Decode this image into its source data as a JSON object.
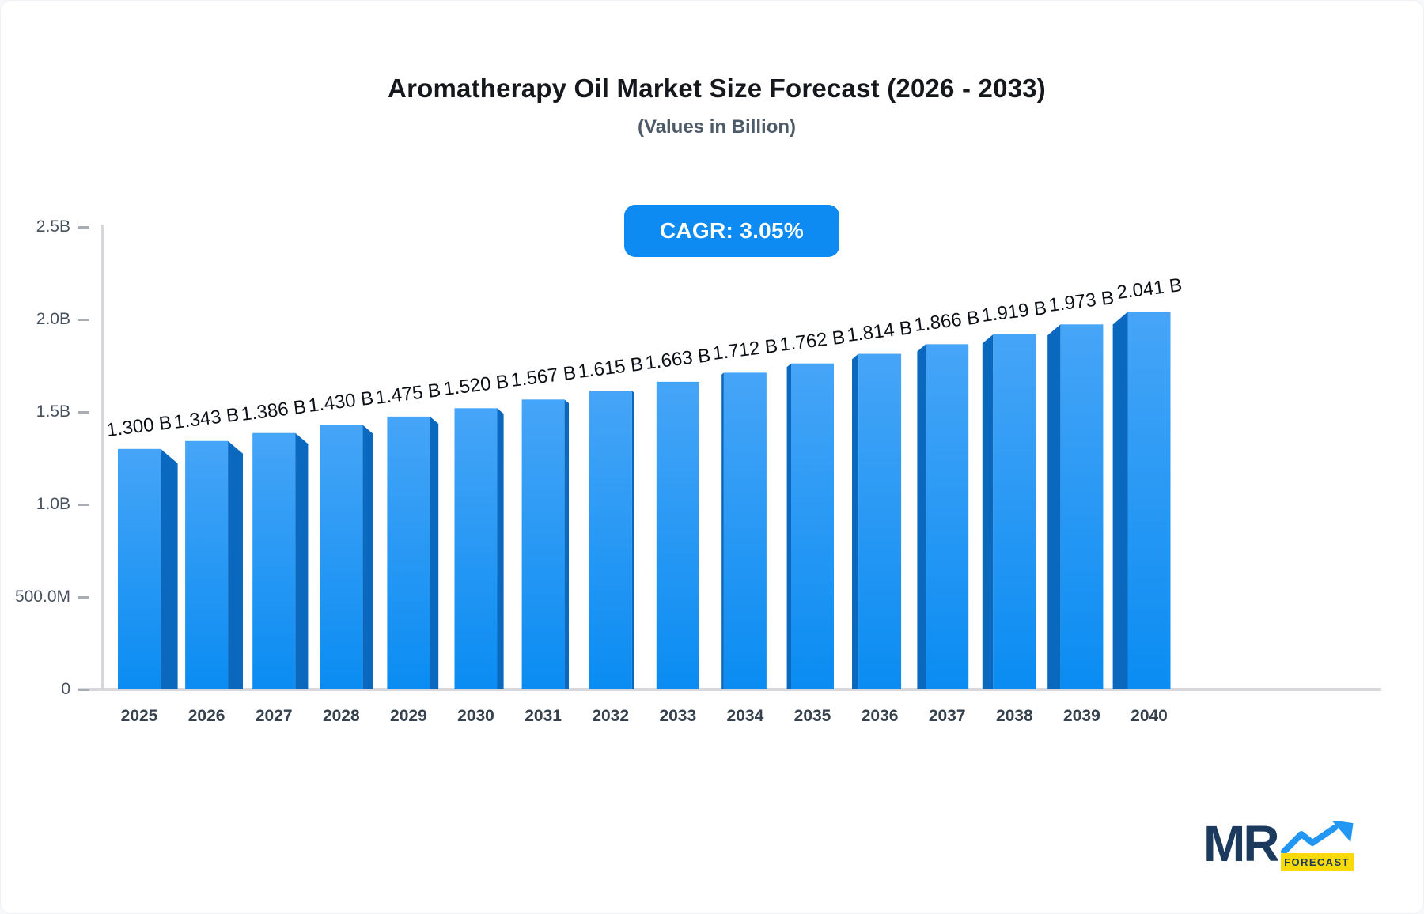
{
  "chart_data": {
    "type": "bar",
    "title": "Aromatherapy Oil Market Size Forecast (2026 - 2033)",
    "subtitle": "(Values in Billion)",
    "badge": "CAGR: 3.05%",
    "categories": [
      "2025",
      "2026",
      "2027",
      "2028",
      "2029",
      "2030",
      "2031",
      "2032",
      "2033",
      "2034",
      "2035",
      "2036",
      "2037",
      "2038",
      "2039",
      "2040"
    ],
    "values": [
      1.3,
      1.343,
      1.386,
      1.43,
      1.475,
      1.52,
      1.567,
      1.615,
      1.663,
      1.712,
      1.762,
      1.814,
      1.866,
      1.919,
      1.973,
      2.041
    ],
    "value_labels": [
      "1.300 B",
      "1.343 B",
      "1.386 B",
      "1.430 B",
      "1.475 B",
      "1.520 B",
      "1.567 B",
      "1.615 B",
      "1.663 B",
      "1.712 B",
      "1.762 B",
      "1.814 B",
      "1.866 B",
      "1.919 B",
      "1.973 B",
      "2.041 B"
    ],
    "unit": "Billion",
    "xlabel": "",
    "ylabel": "",
    "ylim": [
      0,
      2.5
    ],
    "grid": false,
    "legend": "none",
    "y_ticks": [
      {
        "label": "2.5B",
        "value": 2.5
      },
      {
        "label": "2.0B",
        "value": 2.0
      },
      {
        "label": "1.5B",
        "value": 1.5
      },
      {
        "label": "1.0B",
        "value": 1.0
      },
      {
        "label": "500.0M",
        "value": 0.5
      },
      {
        "label": "0",
        "value": 0
      }
    ],
    "colors": {
      "bar_front_top": "#46a5f7",
      "bar_front_bottom": "#0a8cf2",
      "bar_side": "#0a68be",
      "axis": "#d6d8db",
      "tick": "#a8adb4",
      "badge_bg": "#0d8bf2",
      "badge_text": "#ffffff",
      "title_text": "#14181d",
      "subtitle_text": "#4d5a68",
      "x_label_text": "#37424f",
      "y_label_text": "#47525e",
      "value_label_text": "#0d1117"
    }
  },
  "logo": {
    "text": "MR",
    "sub": "FORECAST",
    "colors": {
      "navy": "#1b3a5e",
      "blue": "#2196f3",
      "yellow": "#f9d908"
    }
  }
}
